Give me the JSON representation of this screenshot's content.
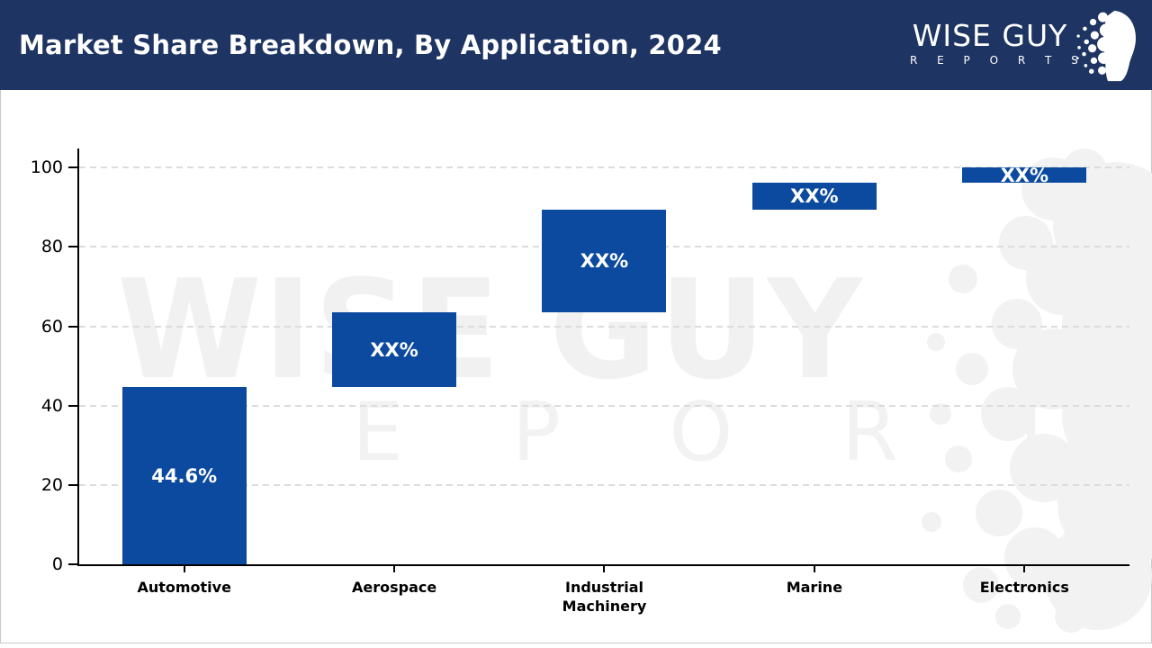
{
  "header": {
    "title": "Market Share Breakdown, By Application, 2024",
    "logo": {
      "line1": "WISE GUY",
      "line2": "R E P O R T S"
    }
  },
  "watermark": {
    "line1": "WISE GUY",
    "line2": "R E P O R T S"
  },
  "colors": {
    "header_bg": "#1e3462",
    "bar_blue": "#0b4a9e",
    "bar_label": "#ffffff",
    "gridline": "#dcdcdc",
    "watermark": "#f1f1f1",
    "frame_border": "#c9c9c9"
  },
  "chart_data": {
    "type": "bar",
    "subtype": "waterfall",
    "title": "Market Share Breakdown, By Application, 2024",
    "xlabel": "",
    "ylabel": "",
    "categories": [
      "Automotive",
      "Aerospace",
      "Industrial\nMachinery",
      "Marine",
      "Electronics"
    ],
    "segments": [
      {
        "category": "Automotive",
        "start": 0,
        "end": 44.6,
        "value": 44.6,
        "label": "44.6%"
      },
      {
        "category": "Aerospace",
        "start": 44.6,
        "end": 63.5,
        "value": 18.9,
        "label": "XX%"
      },
      {
        "category": "Industrial Machinery",
        "start": 63.5,
        "end": 89.3,
        "value": 25.8,
        "label": "XX%"
      },
      {
        "category": "Marine",
        "start": 89.3,
        "end": 96.2,
        "value": 6.9,
        "label": "XX%"
      },
      {
        "category": "Electronics",
        "start": 96.2,
        "end": 100,
        "value": 3.8,
        "label": "XX%"
      }
    ],
    "yticks": [
      0,
      20,
      40,
      60,
      80,
      100
    ],
    "ylim": [
      0,
      104.8
    ],
    "grid": "dashed-horizontal",
    "legend": "none",
    "bar_color": "#0b4a9e",
    "label_color": "#ffffff"
  }
}
